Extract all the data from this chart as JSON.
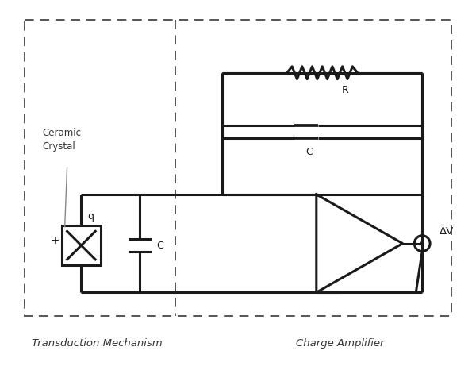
{
  "bg_color": "#ffffff",
  "line_color": "#1a1a1a",
  "dashed_color": "#555555",
  "label_color": "#333333",
  "label_transduction": "Transduction Mechanism",
  "label_charge_amp": "Charge Amplifier",
  "label_ceramic": "Ceramic\nCrystal",
  "label_q": "q",
  "label_plus": "+",
  "label_C_left": "C",
  "label_C_fb": "C",
  "label_R": "R",
  "label_deltaV": "ΔV",
  "fig_width": 6.0,
  "fig_height": 4.66
}
